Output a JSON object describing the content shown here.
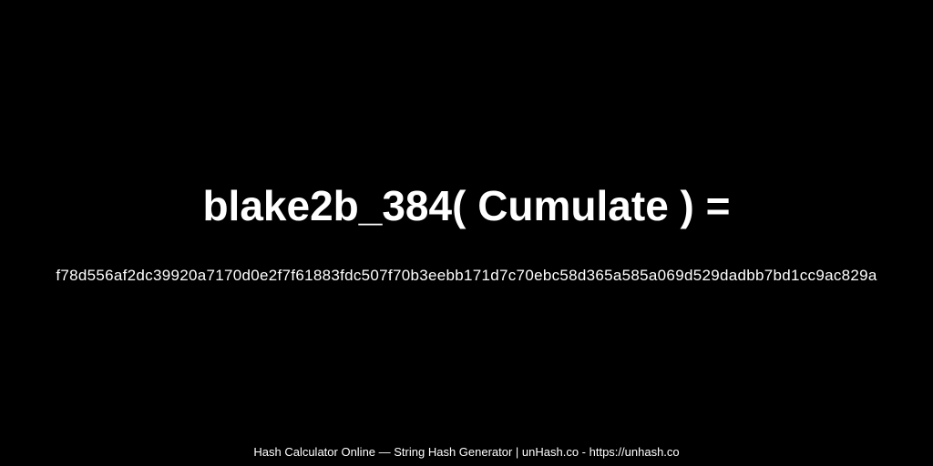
{
  "page": {
    "background_color": "#000000",
    "text_color": "#ffffff"
  },
  "content": {
    "heading": "blake2b_384( Cumulate ) =",
    "heading_fontsize": 46,
    "heading_fontweight": "bold",
    "hash_value": "f78d556af2dc39920a7170d0e2f7f61883fdc507f70b3eebb171d7c70ebc58d365a585a069d529dadbb7bd1cc9ac829a",
    "hash_fontsize": 17
  },
  "footer": {
    "text": "Hash Calculator Online — String Hash Generator | unHash.co - https://unhash.co",
    "fontsize": 13
  }
}
